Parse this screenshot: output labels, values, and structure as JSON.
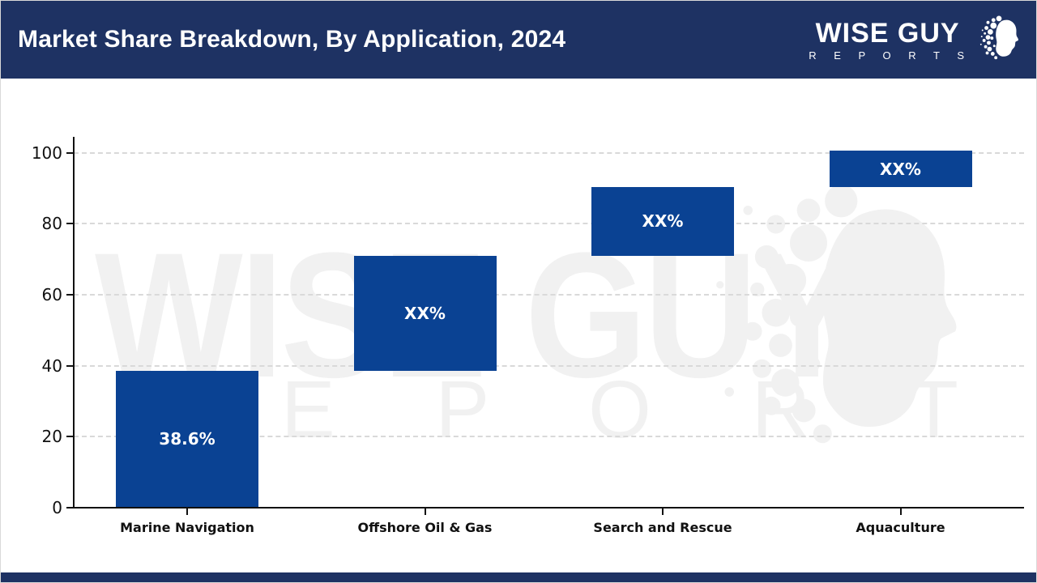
{
  "header": {
    "title": "Market Share Breakdown, By Application, 2024",
    "logo": {
      "line1": "WISE GUY",
      "line2": "R E P O R T S",
      "head_icon": "dotted-head-profile"
    }
  },
  "watermark": {
    "line1": "WISE GUY",
    "line2": "R E P O R T S",
    "head_icon": "dotted-head-profile"
  },
  "colors": {
    "header_bg": "#1e3263",
    "footer_bg": "#1e3263",
    "bar": "#0a4293",
    "bar_label": "#ffffff",
    "grid": "#d9d9d9",
    "axis": "#111111",
    "watermark": "#f1f1f1",
    "title_text": "#ffffff"
  },
  "chart_data": {
    "type": "bar",
    "subtype": "waterfall",
    "title": "Market Share Breakdown, By Application, 2024",
    "categories": [
      "Marine Navigation",
      "Offshore Oil & Gas",
      "Search and Rescue",
      "Aquaculture"
    ],
    "segments": [
      {
        "category": "Marine Navigation",
        "start": 0,
        "end": 38.6,
        "label": "38.6%"
      },
      {
        "category": "Offshore Oil & Gas",
        "start": 38.6,
        "end": 71.0,
        "label": "XX%"
      },
      {
        "category": "Search and Rescue",
        "start": 71.0,
        "end": 90.3,
        "label": "XX%"
      },
      {
        "category": "Aquaculture",
        "start": 90.3,
        "end": 100.5,
        "label": "XX%"
      }
    ],
    "xlabel": "",
    "ylabel": "",
    "yticks": [
      0,
      20,
      40,
      60,
      80,
      100
    ],
    "ylim": [
      0,
      104
    ],
    "grid": "horizontal-dashed",
    "legend": "none"
  }
}
